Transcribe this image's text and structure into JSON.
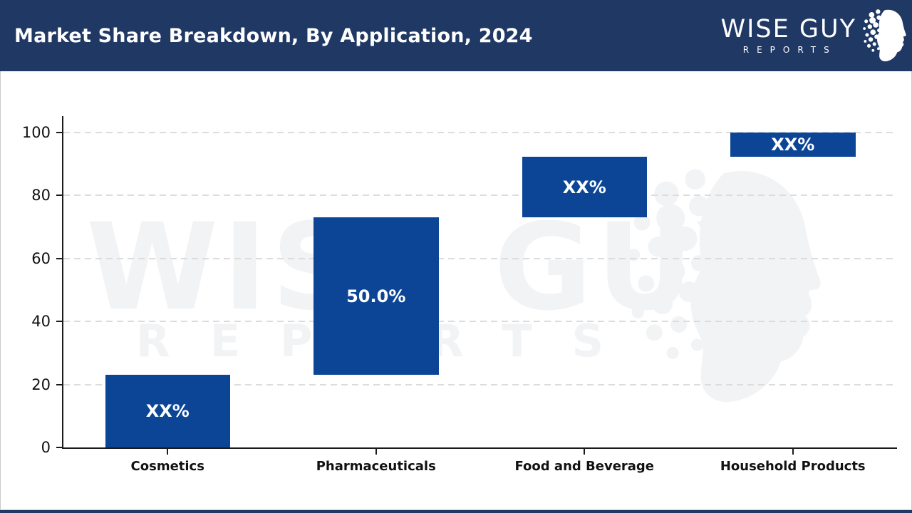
{
  "header": {
    "title": "Market Share Breakdown, By Application, 2024",
    "logo": {
      "line1": "WISE GUY",
      "line2": "REPORTS"
    }
  },
  "watermark": {
    "line1": "WISE GUY",
    "line2": "REPORTS"
  },
  "colors": {
    "header_bg": "#1f3864",
    "footer_bg": "#1f3864",
    "bar": "#0c4596",
    "grid": "#dcdcdc",
    "axis": "#1a1a1a",
    "bar_label_text": "#ffffff",
    "watermark": "#f2f3f5",
    "page_border": "#c9c9c9"
  },
  "chart_data": {
    "type": "bar",
    "subtype": "floating-waterfall",
    "title": "Market Share Breakdown, By Application, 2024",
    "categories": [
      "Cosmetics",
      "Pharmaceuticals",
      "Food and Beverage",
      "Household Products"
    ],
    "segments": [
      {
        "category": "Cosmetics",
        "start": 0,
        "end": 23,
        "label": "XX%"
      },
      {
        "category": "Pharmaceuticals",
        "start": 23,
        "end": 73,
        "label": "50.0%"
      },
      {
        "category": "Food and Beverage",
        "start": 73,
        "end": 92.3,
        "label": "XX%"
      },
      {
        "category": "Household Products",
        "start": 92.3,
        "end": 100,
        "label": "XX%"
      }
    ],
    "values_estimated": [
      23,
      50,
      19.3,
      7.7
    ],
    "xlabel": "",
    "ylabel": "",
    "yticks": [
      0,
      20,
      40,
      60,
      80,
      100
    ],
    "ylim": [
      0,
      105.2
    ],
    "grid": "horizontal-dashed",
    "legend": "none",
    "bar_width_fraction": 0.6
  }
}
